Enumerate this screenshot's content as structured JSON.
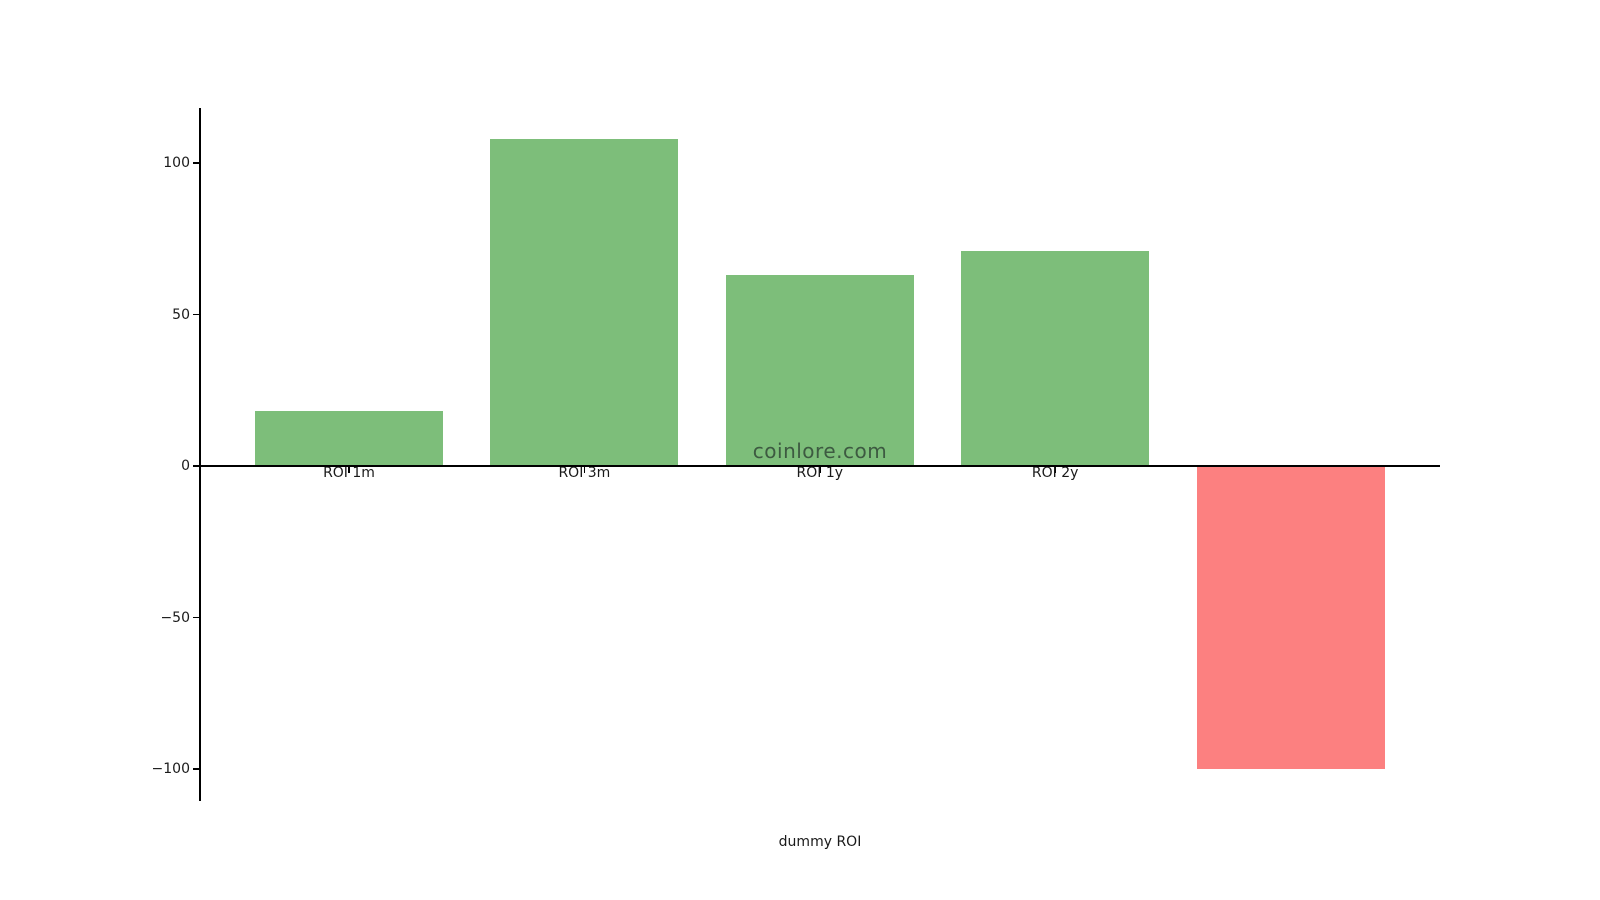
{
  "chart_data": {
    "type": "bar",
    "title": "",
    "xlabel": "dummy ROI",
    "ylabel": "",
    "watermark": "coinlore.com",
    "categories": [
      "ROI 1m",
      "ROI 3m",
      "ROI 1y",
      "ROI 2y",
      ""
    ],
    "values": [
      18,
      108,
      63,
      71,
      -100
    ],
    "series": [
      {
        "name": "dummy ROI",
        "values": [
          18,
          108,
          63,
          71,
          -100
        ]
      }
    ],
    "bar_colors": [
      "#7dbe7a",
      "#7dbe7a",
      "#7dbe7a",
      "#7dbe7a",
      "#fc8080"
    ],
    "positive_color": "#7dbe7a",
    "negative_color": "#fc8080",
    "watermark_color": "#3d5a41",
    "axis_color": "#000000",
    "yticks": [
      {
        "value": 100,
        "label": "100"
      },
      {
        "value": 50,
        "label": "50"
      },
      {
        "value": 0,
        "label": "0"
      },
      {
        "value": -50,
        "label": "−50"
      },
      {
        "value": -100,
        "label": "−100"
      }
    ],
    "ylim": [
      -110.5,
      118.5
    ],
    "grid": false,
    "legend_position": "none",
    "notes": "fifth bar tick label not visible (covered by negative bar)"
  }
}
